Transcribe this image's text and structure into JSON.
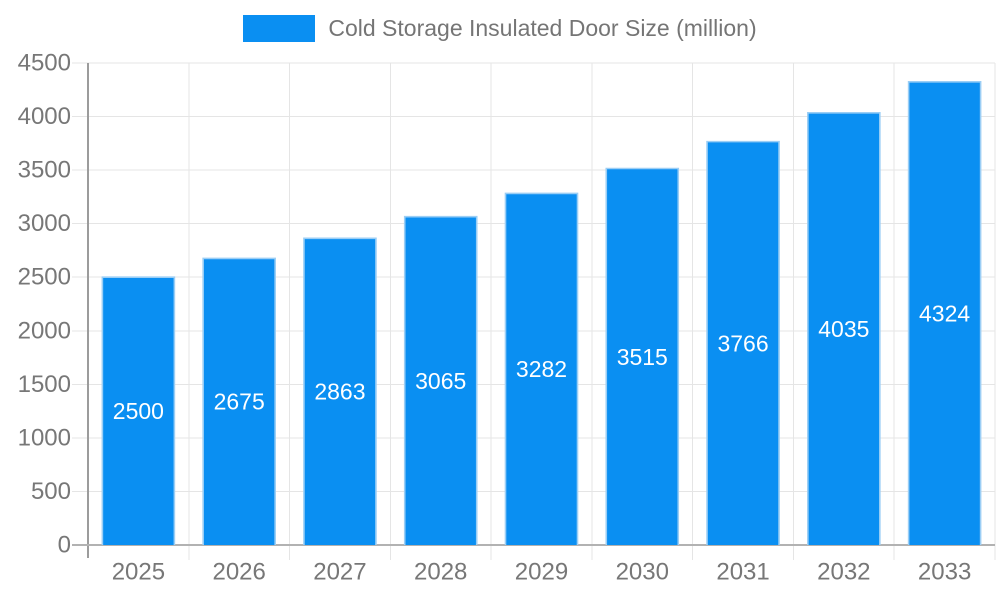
{
  "chart_data": {
    "type": "bar",
    "series_name": "Cold Storage Insulated Door Size (million)",
    "categories": [
      "2025",
      "2026",
      "2027",
      "2028",
      "2029",
      "2030",
      "2031",
      "2032",
      "2033"
    ],
    "values": [
      2500,
      2675,
      2863,
      3065,
      3282,
      3515,
      3766,
      4035,
      4324
    ],
    "value_labels_shown": [
      2500,
      2675,
      2863,
      3065,
      3282,
      3515,
      3766,
      4035,
      4324
    ],
    "title": "",
    "xlabel": "",
    "ylabel": "",
    "ylim": [
      0,
      4500
    ],
    "y_tick_step": 500,
    "y_tick_labels": [
      "0",
      "500",
      "1000",
      "1500",
      "2000",
      "2500",
      "3000",
      "3500",
      "4000",
      "4500"
    ],
    "grid": true,
    "legend_position": "top",
    "value_label_position": "inside-center",
    "colors": {
      "bar": "#0a8ff2",
      "bar_border": "#9bcef5",
      "value_label": "#ffffff",
      "axis_text": "#777777",
      "legend_text": "#757575",
      "gridline": "#e5e5e5",
      "x_axis_line": "#b2b2b2",
      "y_axis_line": "#9c9c9c",
      "background": "#ffffff"
    }
  }
}
